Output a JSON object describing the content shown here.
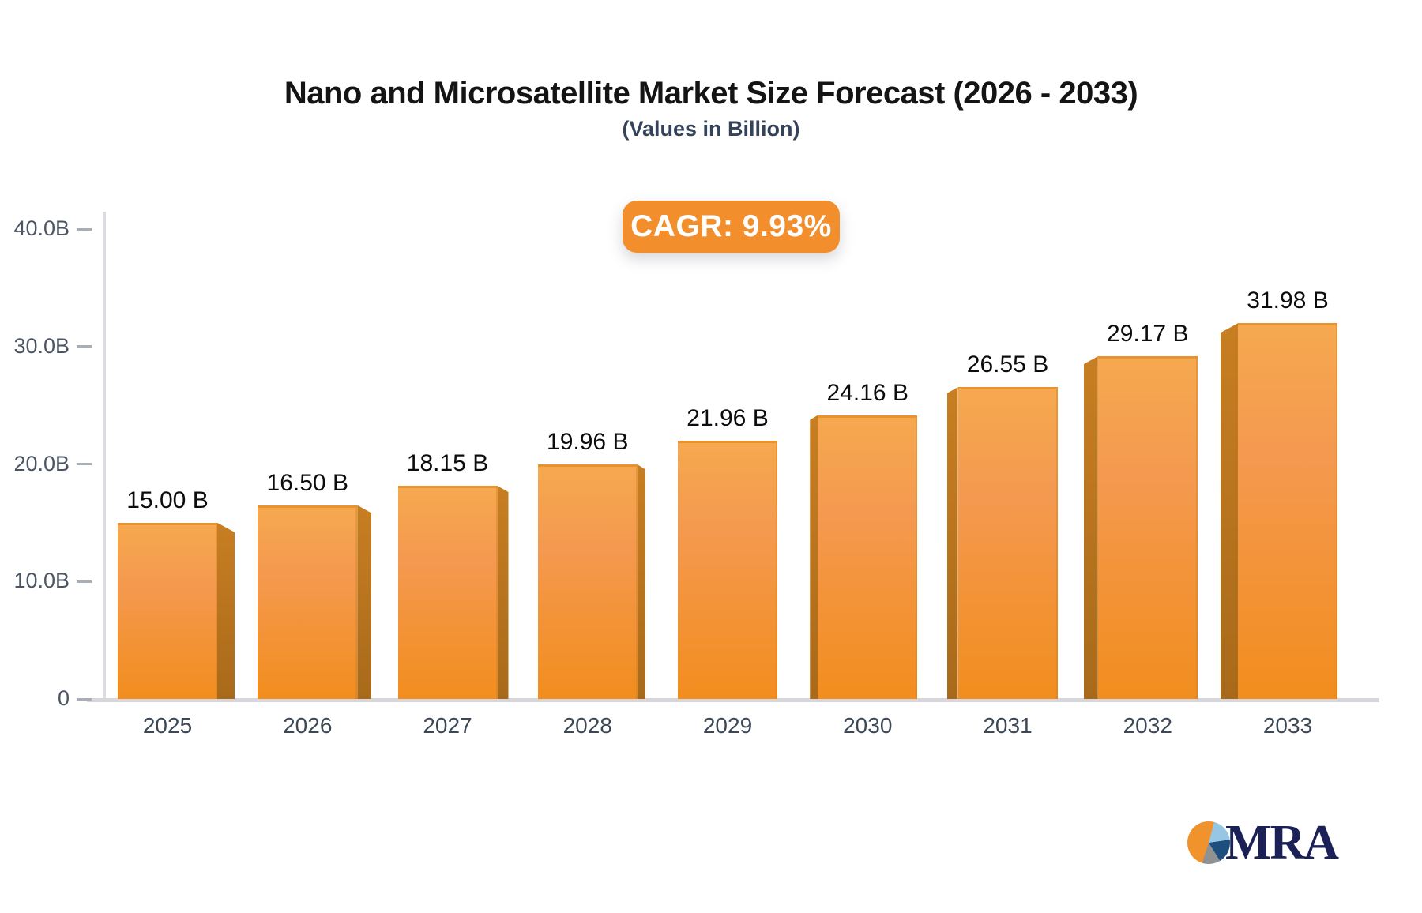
{
  "header": {
    "title": "Nano and Microsatellite Market Size Forecast (2026 - 2033)",
    "subtitle": "(Values in Billion)"
  },
  "badge": {
    "label": "CAGR: 9.93%",
    "background_color": "#F28E2B",
    "text_color": "#FFFFFF"
  },
  "logo": {
    "text": "MRA",
    "pie_colors": [
      "#F0932C",
      "#97C6E5",
      "#1E4E7E",
      "#8F9193"
    ],
    "text_color": "#1B2157"
  },
  "chart_data": {
    "type": "bar",
    "title": "Nano and Microsatellite Market Size Forecast (2026 - 2033)",
    "subtitle": "(Values in Billion)",
    "annotation": "CAGR: 9.93%",
    "categories": [
      "2025",
      "2026",
      "2027",
      "2028",
      "2029",
      "2030",
      "2031",
      "2032",
      "2033"
    ],
    "values": [
      15.0,
      16.5,
      18.15,
      19.96,
      21.96,
      24.16,
      26.55,
      29.17,
      31.98
    ],
    "value_labels": [
      "15.00 B",
      "16.50 B",
      "18.15 B",
      "19.96 B",
      "21.96 B",
      "24.16 B",
      "26.55 B",
      "29.17 B",
      "31.98 B"
    ],
    "xlabel": "",
    "ylabel": "",
    "ylim": [
      0,
      40
    ],
    "y_ticks": [
      {
        "label": "40.0B",
        "value": 40
      },
      {
        "label": "30.0B",
        "value": 30
      },
      {
        "label": "20.0B",
        "value": 20
      },
      {
        "label": "10.0B",
        "value": 10
      },
      {
        "label": "0",
        "value": 0
      }
    ],
    "grid": false,
    "legend": "none",
    "bar_color_top": "#F6A84F",
    "bar_color_bottom": "#F28D1E",
    "bar_side_color": "#C87E22"
  }
}
